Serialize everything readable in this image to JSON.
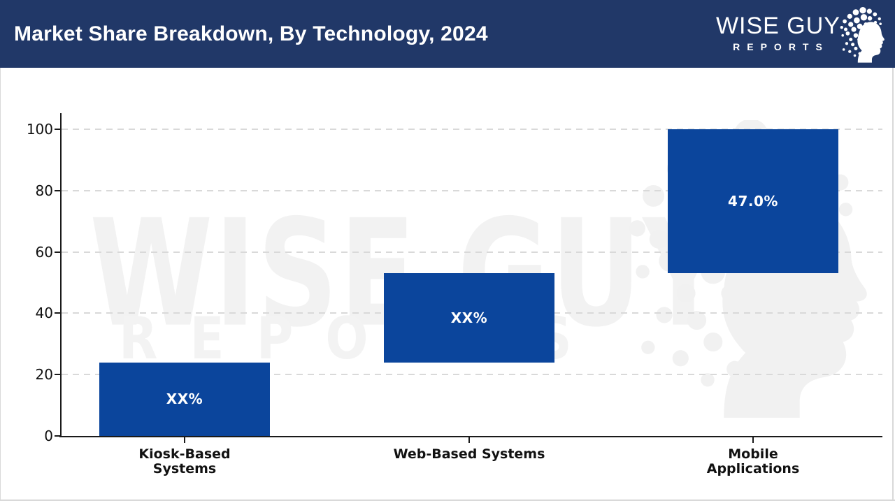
{
  "header": {
    "title": "Market Share Breakdown, By Technology, 2024",
    "logo": {
      "primary": "WISE GUY",
      "secondary": "REPORTS"
    }
  },
  "watermark": {
    "primary": "WISE GUY",
    "secondary": "REPORTS"
  },
  "chart_data": {
    "type": "bar",
    "subtype": "floating-segment-waterfall",
    "title": "Market Share Breakdown, By Technology, 2024",
    "categories": [
      "Kiosk-Based Systems",
      "Web-Based Systems",
      "Mobile Applications"
    ],
    "segments": [
      {
        "category": "Kiosk-Based Systems",
        "label_lines": [
          "Kiosk-Based",
          "Systems"
        ],
        "start": 0,
        "end": 24,
        "value": 24,
        "bar_label": "XX%"
      },
      {
        "category": "Web-Based Systems",
        "label_lines": [
          "Web-Based Systems"
        ],
        "start": 24,
        "end": 53,
        "value": 29,
        "bar_label": "XX%"
      },
      {
        "category": "Mobile Applications",
        "label_lines": [
          "Mobile",
          "Applications"
        ],
        "start": 53,
        "end": 100,
        "value": 47,
        "bar_label": "47.0%"
      }
    ],
    "xlabel": "",
    "ylabel": "",
    "yticks": [
      0,
      20,
      40,
      60,
      80,
      100
    ],
    "ylim": [
      0,
      105
    ],
    "grid": "horizontal-dashed",
    "legend": "none",
    "bar_color": "#0b459c",
    "bar_label_color": "#ffffff"
  },
  "colors": {
    "header_bg": "#213868",
    "header_text": "#ffffff",
    "bar": "#0b459c",
    "grid": "#d9d9d9",
    "axis": "#1a1a1a",
    "watermark": "#f2f2f2",
    "frame": "#d9d9d9"
  }
}
